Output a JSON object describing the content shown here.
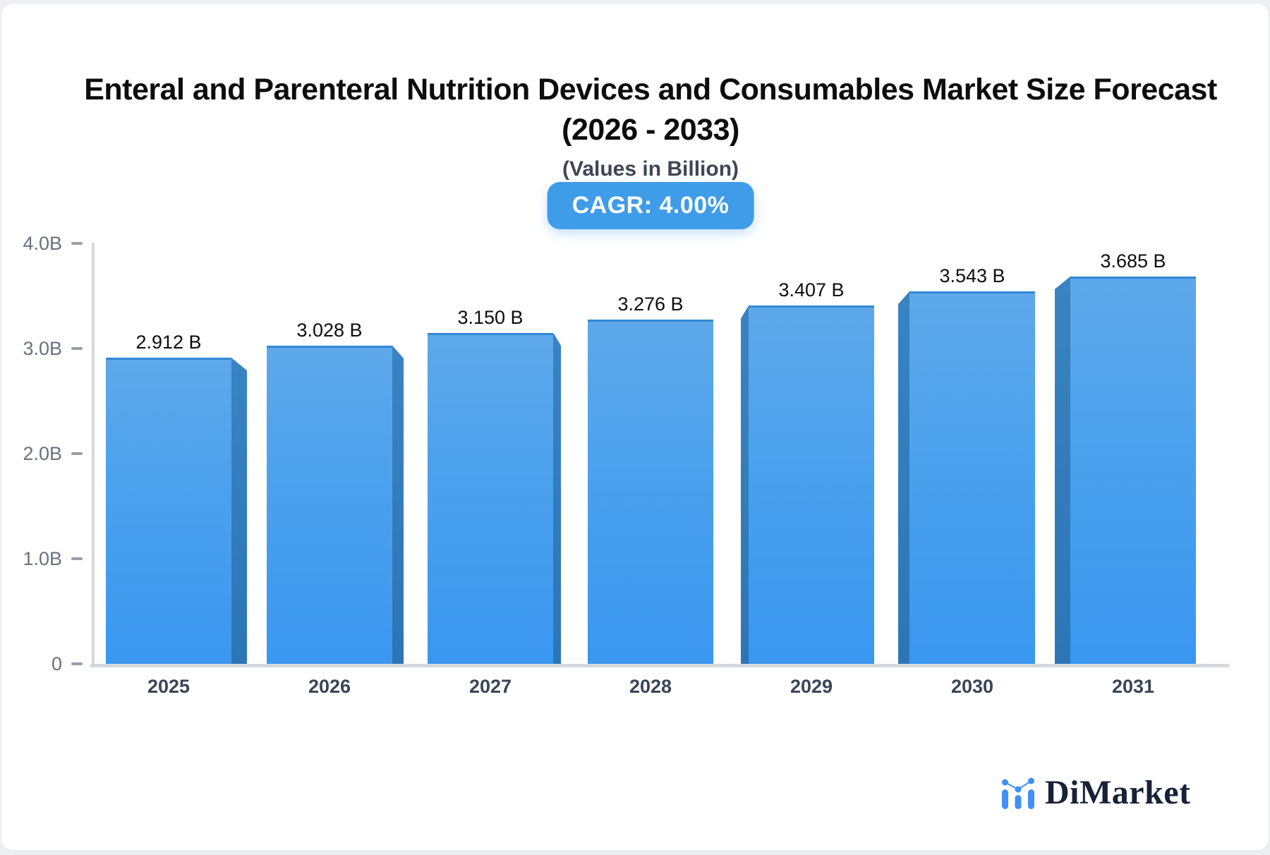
{
  "header": {
    "title_line1": "Enteral and Parenteral Nutrition Devices and Consumables Market Size Forecast",
    "title_line2": "(2026 - 2033)",
    "subtitle": "(Values in Billion)",
    "cagr_badge": "CAGR: 4.00%",
    "badge_color": "#3f9ce9"
  },
  "chart_data": {
    "type": "bar",
    "title": "Enteral and Parenteral Nutrition Devices and Consumables Market Size Forecast (2026 - 2033)",
    "subtitle": "(Values in Billion)",
    "cagr": "4.00%",
    "categories": [
      "2025",
      "2026",
      "2027",
      "2028",
      "2029",
      "2030",
      "2031"
    ],
    "values": [
      2.912,
      3.028,
      3.15,
      3.276,
      3.407,
      3.543,
      3.685
    ],
    "value_labels": [
      "2.912 B",
      "3.028 B",
      "3.150 B",
      "3.276 B",
      "3.407 B",
      "3.543 B",
      "3.685 B"
    ],
    "unit": "Billion",
    "y_ticks": [
      {
        "value": 0,
        "label": "0"
      },
      {
        "value": 1,
        "label": "1.0B"
      },
      {
        "value": 2,
        "label": "2.0B"
      },
      {
        "value": 3,
        "label": "3.0B"
      },
      {
        "value": 4,
        "label": "4.0B"
      }
    ],
    "ylim": [
      0,
      4
    ],
    "xlabel": "",
    "ylabel": "",
    "grid": false,
    "legend": false,
    "bar_color_top": "#5ea8ea",
    "bar_color_bottom": "#3a97f0",
    "bar_side_color": "#2e7ab9"
  },
  "footer": {
    "brand": "DiMarket",
    "brand_color": "#152238",
    "icon_color": "#4090f7"
  }
}
